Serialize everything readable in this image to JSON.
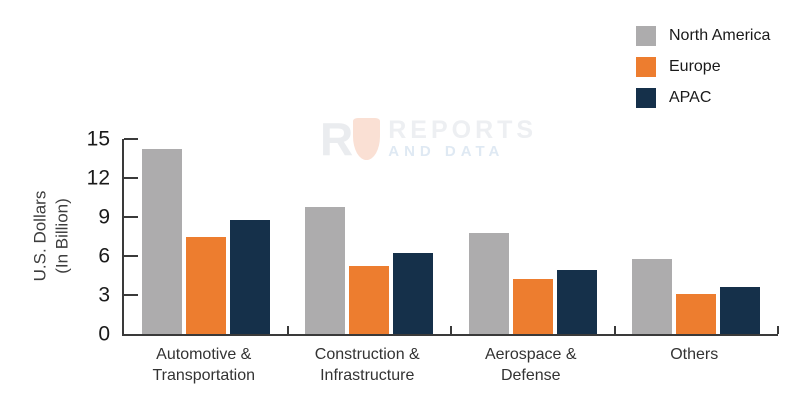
{
  "chart_data": {
    "type": "bar",
    "title": "",
    "ylabel": "U.S. Dollars (In Billion)",
    "ylabel_line1": "U.S. Dollars",
    "ylabel_line2": "(In Billion)",
    "xlabel": "",
    "ylim": [
      0,
      15
    ],
    "yticks": [
      0,
      3,
      6,
      9,
      12,
      15
    ],
    "grid": false,
    "legend_position": "top-right",
    "categories": [
      "Automotive &\nTransportation",
      "Construction &\nInfrastructure",
      "Aerospace &\nDefense",
      "Others"
    ],
    "series": [
      {
        "name": "North America",
        "color": "#adacad",
        "values": [
          14.2,
          9.8,
          7.8,
          5.8
        ]
      },
      {
        "name": "Europe",
        "color": "#ed7d2f",
        "values": [
          7.5,
          5.2,
          4.2,
          3.1
        ]
      },
      {
        "name": "APAC",
        "color": "#15304a",
        "values": [
          8.8,
          6.2,
          4.9,
          3.6
        ]
      }
    ]
  },
  "colors": {
    "axis": "#3a3a3a",
    "tick_label": "#1a1a1a",
    "category_label": "#333333",
    "background": "#ffffff"
  },
  "watermark": {
    "logo_letter": "R",
    "line1": "REPORTS",
    "line2": "AND DATA"
  }
}
